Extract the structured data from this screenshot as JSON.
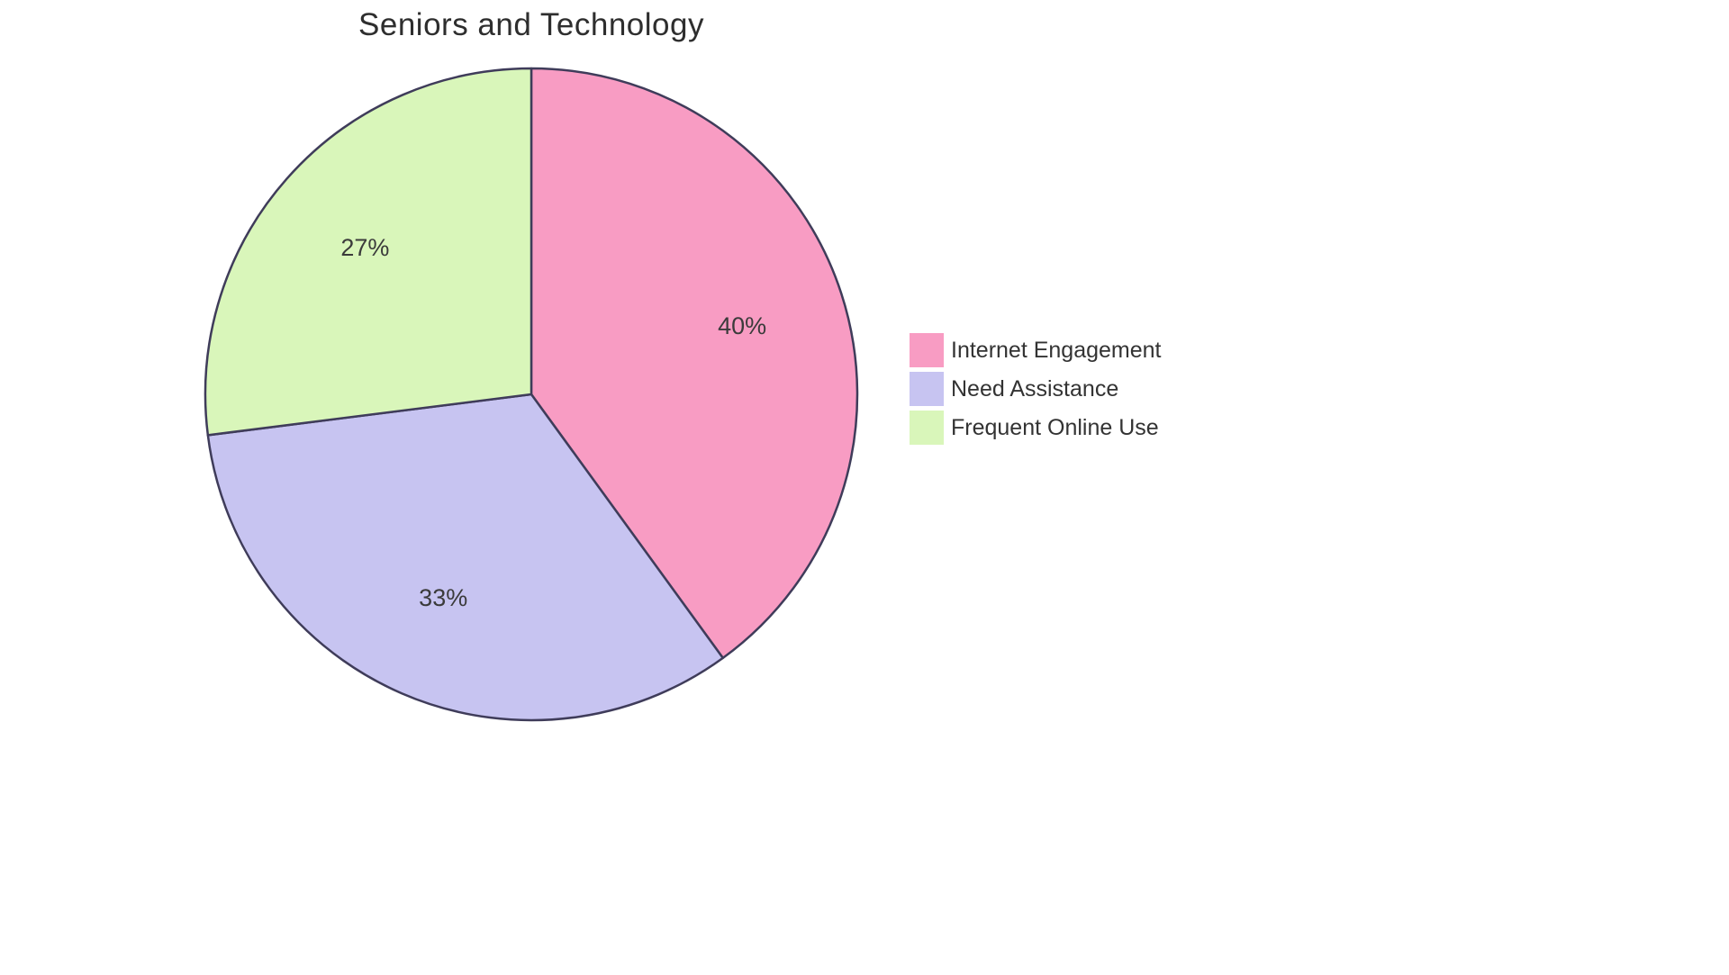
{
  "chart_data": {
    "type": "pie",
    "title": "Seniors and Technology",
    "labels": [
      "Internet Engagement",
      "Need Assistance",
      "Frequent Online Use"
    ],
    "values": [
      40,
      33,
      27
    ],
    "slice_labels": [
      "40%",
      "33%",
      "27%"
    ],
    "colors": [
      "#F89CC3",
      "#C7C4F1",
      "#D9F6BA"
    ],
    "stroke_color": "#3F3C5A",
    "label_color": "#3B3B3B",
    "background": "#FFFFFF",
    "start_angle_deg": 0,
    "direction": "clockwise",
    "legend_position": "right"
  }
}
